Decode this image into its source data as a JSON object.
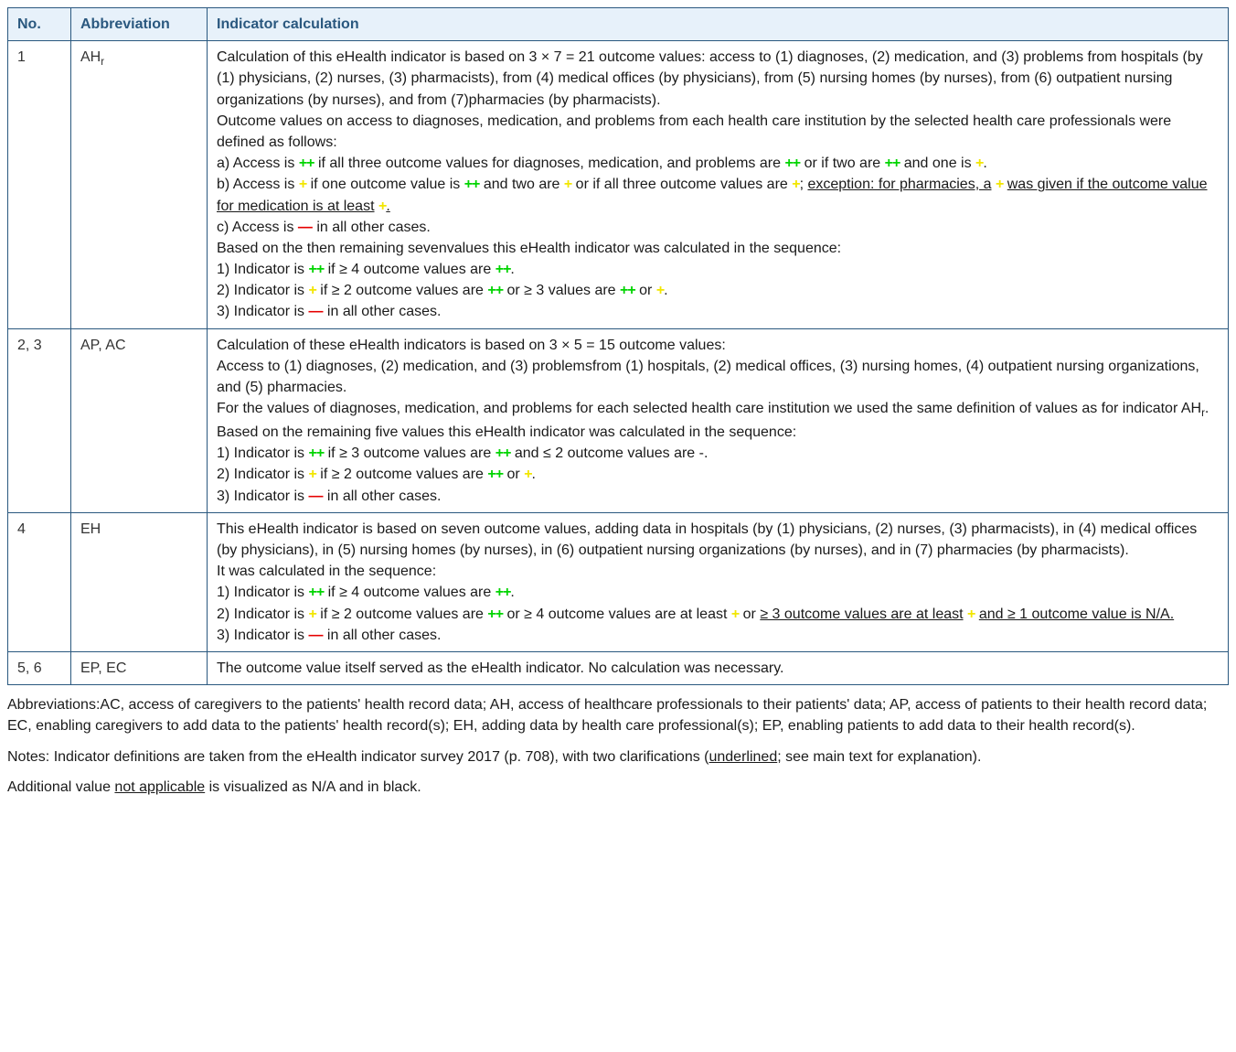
{
  "colors": {
    "header_bg": "#e7f1fa",
    "border": "#2a587f",
    "text_header": "#2a587f",
    "green_plusplus": "#00d400",
    "yellow_plus": "#f2e600",
    "red_minus": "#e60000",
    "body_text": "#1a1a1a"
  },
  "typography": {
    "body_family": "Segoe UI, Helvetica Neue, Arial, sans-serif",
    "body_size_pt": 12,
    "header_weight": 700
  },
  "columns": [
    "No.",
    "Abbreviation",
    "Indicator calculation"
  ],
  "rows": [
    {
      "no": "1",
      "abbr_html": "AH<span class='sub'>r</span>",
      "calc_html": "Calculation of this eHealth indicator is based on 3 × 7 = 21 outcome values: access to (1) diagnoses, (2) medication, and (3) problems from hospitals (by (1) physicians, (2) nurses, (3) pharmacists), from (4) medical offices (by physicians), from (5) nursing homes (by nurses), from (6) outpatient nursing organizations (by nurses), and from (7)pharmacies (by pharmacists).<br>Outcome values on access to diagnoses, medication, and problems from each health care institution by the selected health care professionals were defined as follows:<br>a) Access is <span class='sym pp'>++</span> if all three outcome values for diagnoses, medication, and problems are <span class='sym pp'>++</span> or if two are <span class='sym pp'>++</span> and one is <span class='sym py'>+</span>.<br>b) Access is <span class='sym py'>+</span> if one outcome value is <span class='sym pp'>++</span> and two are <span class='sym py'>+</span> or if all three outcome values are <span class='sym py'>+</span>; <span class='u'>exception: for pharmacies, a</span> <span class='sym py'>+</span> <span class='u'>was given if the outcome value for medication is at least</span> <span class='sym py'>+</span><span class='u'>.</span><br>c) Access is <span class='sym mr'>—</span> in all other cases.<br>Based on the then remaining sevenvalues this eHealth indicator was calculated in the sequence:<br>1) Indicator is <span class='sym pp'>++</span> if ≥ 4 outcome values are <span class='sym pp'>++</span>.<br>2) Indicator is <span class='sym py'>+</span> if ≥ 2 outcome values are <span class='sym pp'>++</span> or ≥ 3 values are <span class='sym pp'>++</span> or <span class='sym py'>+</span>.<br>3) Indicator is <span class='sym mr'>—</span> in all other cases."
    },
    {
      "no": "2, 3",
      "abbr_html": "AP, AC",
      "calc_html": "Calculation of these eHealth indicators is based on 3 × 5 = 15 outcome values:<br>Access to (1) diagnoses, (2) medication, and (3) problemsfrom (1) hospitals, (2) medical offices, (3) nursing homes, (4) outpatient nursing organizations, and (5) pharmacies.<br>For the values of diagnoses, medication, and problems for each selected health care institution we used the same definition of values as for indicator AH<span class='sub'>r</span>.<br>Based on the remaining five values this eHealth indicator was calculated in the sequence:<br>1) Indicator is <span class='sym pp'>++</span> if ≥ 3 outcome values are <span class='sym pp'>++</span> and ≤ 2 outcome values are -.<br>2) Indicator is <span class='sym py'>+</span> if ≥ 2 outcome values are <span class='sym pp'>++</span> or <span class='sym py'>+</span>.<br>3) Indicator is <span class='sym mr'>—</span> in all other cases."
    },
    {
      "no": "4",
      "abbr_html": "EH",
      "calc_html": "This eHealth indicator is based on seven outcome values, adding data in hospitals (by (1) physicians, (2) nurses, (3) pharmacists), in (4) medical offices (by physicians), in (5) nursing homes (by nurses), in (6) outpatient nursing organizations (by nurses), and in (7) pharmacies (by pharmacists).<br>It was calculated in the sequence:<br>1) Indicator is <span class='sym pp'>++</span> if ≥ 4 outcome values are <span class='sym pp'>++</span>.<br>2) Indicator is <span class='sym py'>+</span> if ≥ 2 outcome values are <span class='sym pp'>++</span> or ≥ 4 outcome values are at least <span class='sym py'>+</span> or <span class='u'>≥ 3 outcome values are at least</span> <span class='sym py'>+</span> <span class='u'>and ≥ 1 outcome value is N/A.</span><br>3) Indicator is <span class='sym mr'>—</span> in all other cases."
    },
    {
      "no": "5, 6",
      "abbr_html": "EP, EC",
      "calc_html": "The outcome value itself served as the eHealth indicator. No calculation was necessary."
    }
  ],
  "footnotes": [
    "Abbreviations:AC, access of caregivers to the patients' health record data; AH, access of healthcare professionals to their patients' data; AP, access of patients to their health record data; EC, enabling caregivers to add data to the patients' health record(s); EH, adding data by health care professional(s); EP, enabling patients to add data to their health record(s).",
    "Notes: Indicator definitions are taken from the eHealth indicator survey 2017 (p. 708), with two clarifications (<span class='u'>underlined</span>; see main text for explanation).",
    "Additional value <span class='u'>not applicable</span> is visualized as N/A and in black."
  ]
}
